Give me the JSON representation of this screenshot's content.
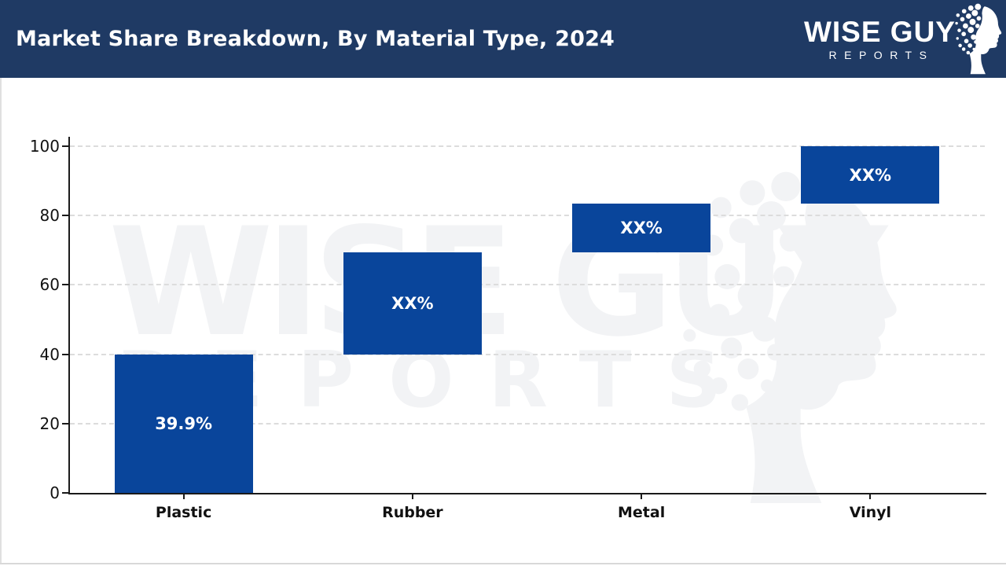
{
  "header": {
    "title": "Market Share Breakdown, By Material Type, 2024",
    "logo": {
      "wordmark": "WISE GUY",
      "subtitle": "REPORTS"
    }
  },
  "watermark": {
    "line1": "WISE GUY",
    "line2": "REPORTS"
  },
  "chart_data": {
    "type": "bar",
    "subtype": "floating-waterfall",
    "title": "Market Share Breakdown, By Material Type, 2024",
    "categories": [
      "Plastic",
      "Rubber",
      "Metal",
      "Vinyl"
    ],
    "series": [
      {
        "name": "Market share (%)",
        "segments": [
          {
            "category": "Plastic",
            "start": 0,
            "end": 39.9,
            "label": "39.9%"
          },
          {
            "category": "Rubber",
            "start": 39.9,
            "end": 69.3,
            "label": "XX%"
          },
          {
            "category": "Metal",
            "start": 69.3,
            "end": 83.4,
            "label": "XX%"
          },
          {
            "category": "Vinyl",
            "start": 83.4,
            "end": 100,
            "label": "XX%"
          }
        ]
      }
    ],
    "xlabel": "",
    "ylabel": "",
    "ylim": [
      0,
      100
    ],
    "yticks": [
      0,
      20,
      40,
      60,
      80,
      100
    ],
    "grid": "horizontal-dashed",
    "legend": "none",
    "colors": {
      "bar": "#09459B",
      "bar_label": "#ffffff",
      "axis": "#1a1a1a",
      "grid": "#dcdcdc",
      "header_bg": "#1F3A64",
      "watermark": "#F2F3F5"
    }
  }
}
